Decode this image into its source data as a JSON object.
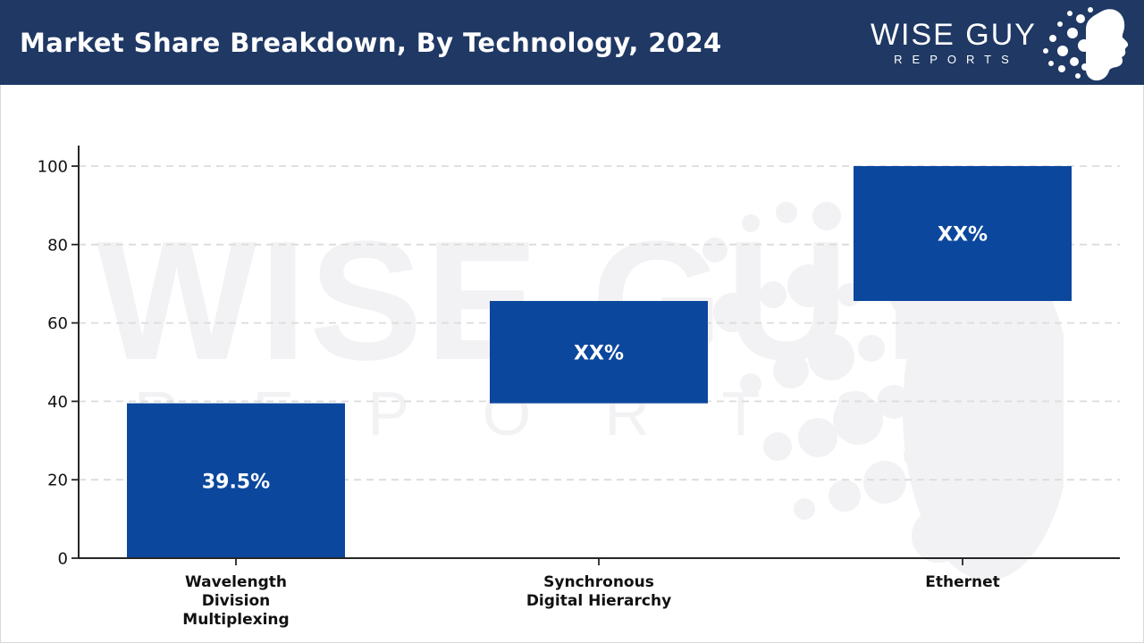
{
  "header": {
    "title": "Market Share Breakdown, By Technology, 2024",
    "logo_line1": "WISE GUY",
    "logo_line2": "REPORTS",
    "background_color": "#1f3864"
  },
  "watermark": {
    "line1": "WISE GUY",
    "line2": "REPORTS"
  },
  "chart_data": {
    "type": "bar",
    "subtype": "waterfall",
    "title": "Market Share Breakdown, By Technology, 2024",
    "categories": [
      "Wavelength Division Multiplexing",
      "Synchronous Digital Hierarchy",
      "Ethernet"
    ],
    "category_lines": [
      [
        "Wavelength",
        "Division",
        "Multiplexing"
      ],
      [
        "Synchronous",
        "Digital Hierarchy"
      ],
      [
        "Ethernet"
      ]
    ],
    "series": [
      {
        "name": "Market Share",
        "segments": [
          {
            "category": "Wavelength Division Multiplexing",
            "start": 0,
            "end": 39.5,
            "label": "39.5%"
          },
          {
            "category": "Synchronous Digital Hierarchy",
            "start": 39.5,
            "end": 65.6,
            "label": "XX%"
          },
          {
            "category": "Ethernet",
            "start": 65.6,
            "end": 100,
            "label": "XX%"
          }
        ]
      }
    ],
    "ylim": [
      0,
      100
    ],
    "yticks": [
      0,
      20,
      40,
      60,
      80,
      100
    ],
    "xlabel": "",
    "ylabel": "",
    "grid": "horizontal-dashed",
    "legend": "none",
    "bar_color": "#0b479d",
    "bar_label_color": "#ffffff"
  }
}
